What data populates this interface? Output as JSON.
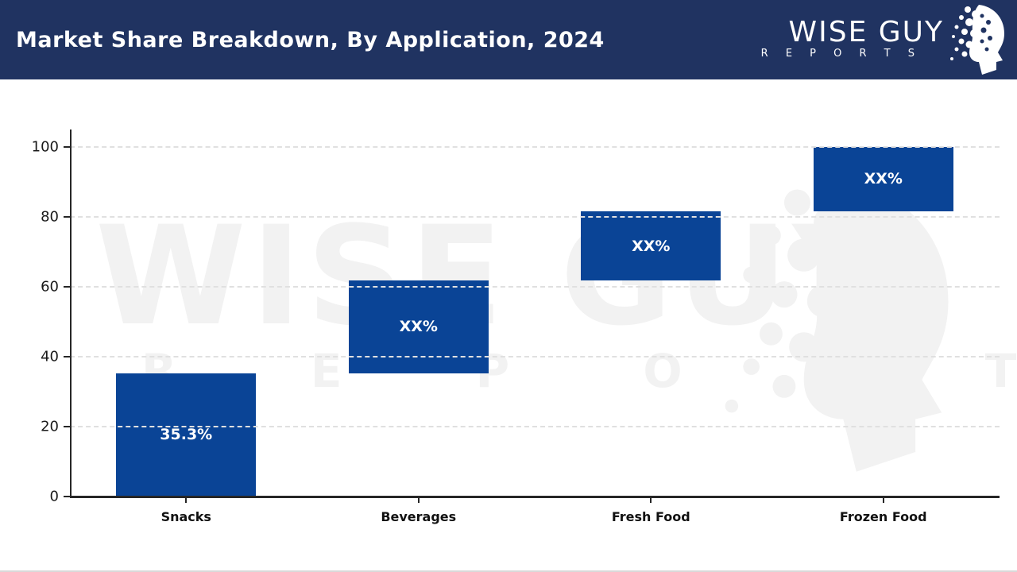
{
  "header": {
    "title": "Market Share Breakdown, By Application, 2024",
    "logo": {
      "line1": "WISE GUY",
      "line2": "R E P O R T S"
    }
  },
  "watermark": {
    "line1": "WISE GUY",
    "line2": "R E P O R T S"
  },
  "colors": {
    "header_bg": "#203361",
    "bar": "#0a4496",
    "grid": "#e0e0e0",
    "axis": "#262626",
    "bar_label_text": "#ffffff",
    "watermark": "#f2f2f2"
  },
  "chart_data": {
    "type": "bar",
    "subtype": "waterfall",
    "title": "Market Share Breakdown, By Application, 2024",
    "categories": [
      "Snacks",
      "Beverages",
      "Fresh Food",
      "Frozen Food"
    ],
    "segments": [
      {
        "start": 0,
        "end": 35.3
      },
      {
        "start": 35.3,
        "end": 61.8
      },
      {
        "start": 61.8,
        "end": 81.6
      },
      {
        "start": 81.6,
        "end": 100
      }
    ],
    "bar_labels": [
      "35.3%",
      "XX%",
      "XX%",
      "XX%"
    ],
    "yticks": [
      0,
      20,
      40,
      60,
      80,
      100
    ],
    "ylim": [
      0,
      105
    ],
    "xlabel": "",
    "ylabel": "",
    "grid": "horizontal-dashed",
    "legend": "none"
  }
}
